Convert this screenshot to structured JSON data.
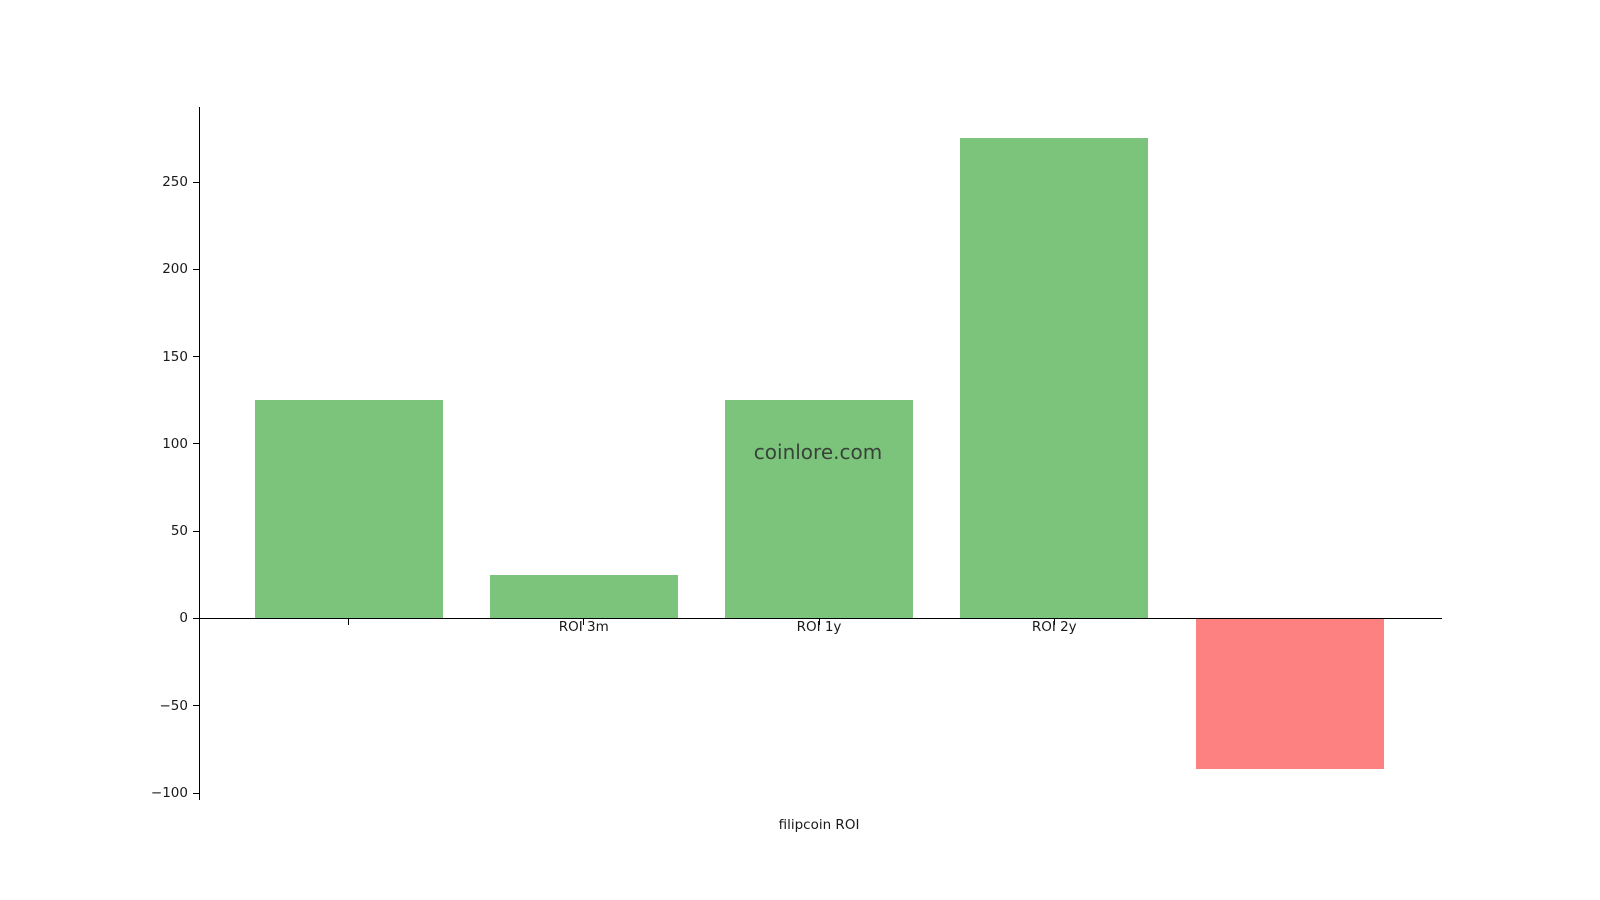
{
  "chart_data": {
    "type": "bar",
    "title": "",
    "xlabel": "filipcoin ROI",
    "ylabel": "",
    "categories": [
      "",
      "ROI 3m",
      "ROI 1y",
      "ROI 2y",
      ""
    ],
    "values": [
      125,
      25,
      125,
      275,
      -86
    ],
    "series": [
      {
        "name": "filipcoin ROI %",
        "values": [
          125,
          25,
          125,
          275,
          -86
        ]
      }
    ],
    "bar_colors": [
      "#7cc47c",
      "#7cc47c",
      "#7cc47c",
      "#7cc47c",
      "#fd8181"
    ],
    "positive_color": "#7cc47c",
    "negative_color": "#fd8181",
    "yticks": [
      -100,
      -50,
      0,
      50,
      100,
      150,
      200,
      250
    ],
    "ylim": [
      -104,
      293
    ],
    "grid": false,
    "legend": false,
    "axis_color": "#000000",
    "tick_label_color": "#1a1a1a",
    "watermark": "coinlore.com",
    "watermark_color": "rgba(45,45,45,0.85)",
    "background_color": "#ffffff"
  }
}
